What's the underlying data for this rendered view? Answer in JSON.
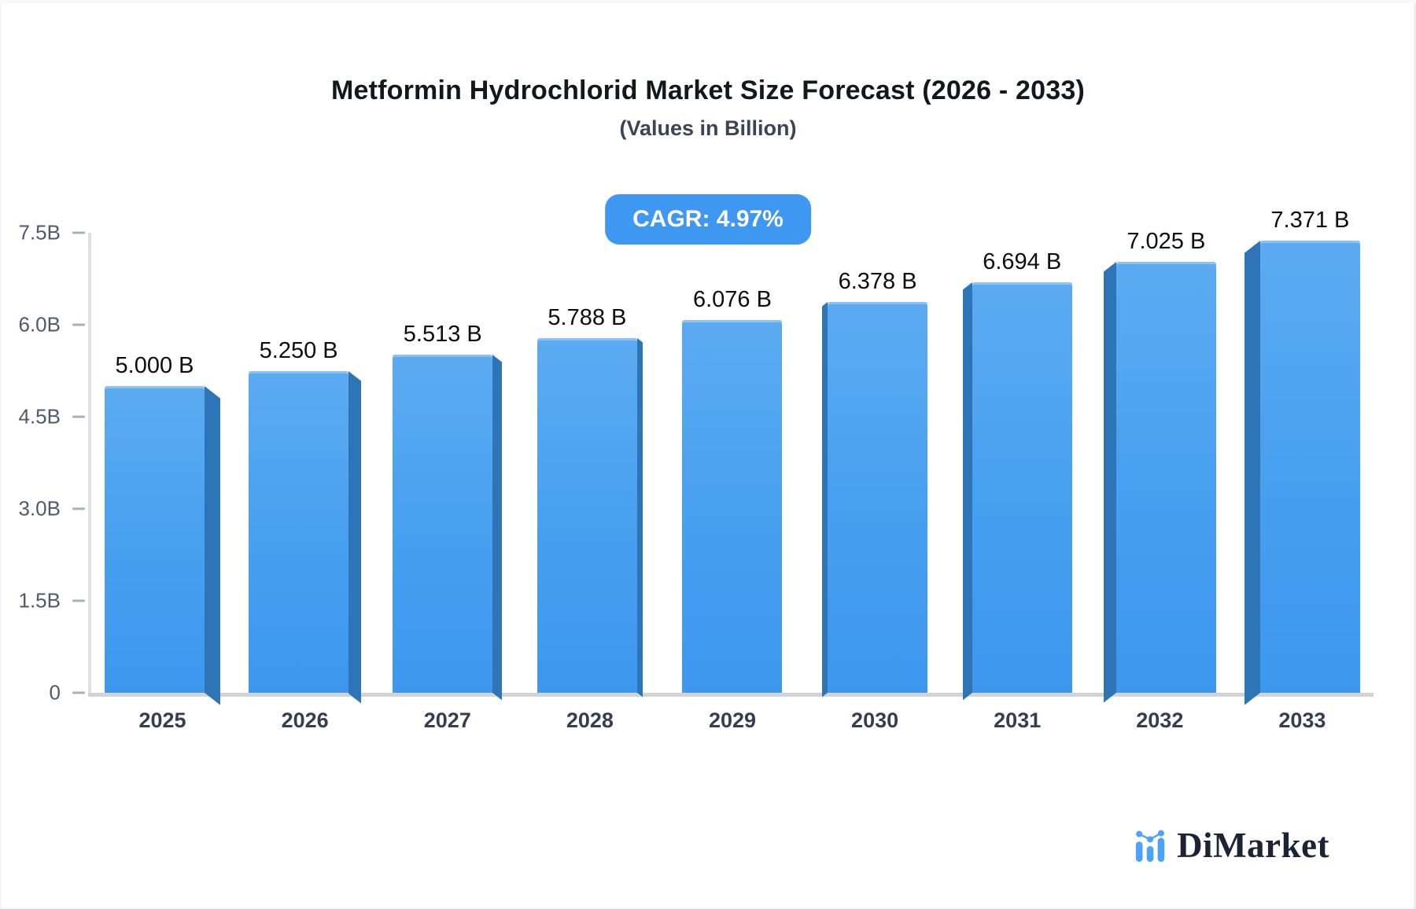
{
  "title": "Metformin Hydrochlorid Market Size Forecast (2026 - 2033)",
  "subtitle": "(Values in Billion)",
  "badge": {
    "label": "CAGR: 4.97%"
  },
  "chart_data": {
    "type": "bar",
    "title": "Metformin Hydrochlorid Market Size Forecast (2026 - 2033)",
    "subtitle": "(Values in Billion)",
    "unit": "Billion",
    "cagr": "4.97%",
    "categories": [
      "2025",
      "2026",
      "2027",
      "2028",
      "2029",
      "2030",
      "2031",
      "2032",
      "2033"
    ],
    "values": [
      5.0,
      5.25,
      5.513,
      5.788,
      6.076,
      6.378,
      6.694,
      7.025,
      7.371
    ],
    "value_labels": [
      "5.000 B",
      "5.250 B",
      "5.513 B",
      "5.788 B",
      "6.076 B",
      "6.378 B",
      "6.694 B",
      "7.025 B",
      "7.371 B"
    ],
    "ylim": [
      0,
      7.5
    ],
    "yticks": [
      {
        "label": "7.5B",
        "value": 7.5
      },
      {
        "label": "6.0B",
        "value": 6.0
      },
      {
        "label": "4.5B",
        "value": 4.5
      },
      {
        "label": "3.0B",
        "value": 3.0
      },
      {
        "label": "1.5B",
        "value": 1.5
      },
      {
        "label": "0",
        "value": 0
      }
    ],
    "grid": false,
    "legend": false,
    "style": "3d-extruded-bars",
    "bar_color": "#459df0",
    "bar_side_color": "#2e75b7"
  },
  "branding": {
    "name": "DiMarket",
    "logo_icon": "bar-line-chart-icon"
  },
  "colors": {
    "accent_blue": "#3e97f1",
    "axis_line": "#dcdfe4",
    "baseline": "#d3d3d3",
    "ytick_text": "#4e5a6b",
    "xlabel_text": "#333e52",
    "logo_blue": "#4da2f6",
    "logo_navy": "#1b2334"
  }
}
